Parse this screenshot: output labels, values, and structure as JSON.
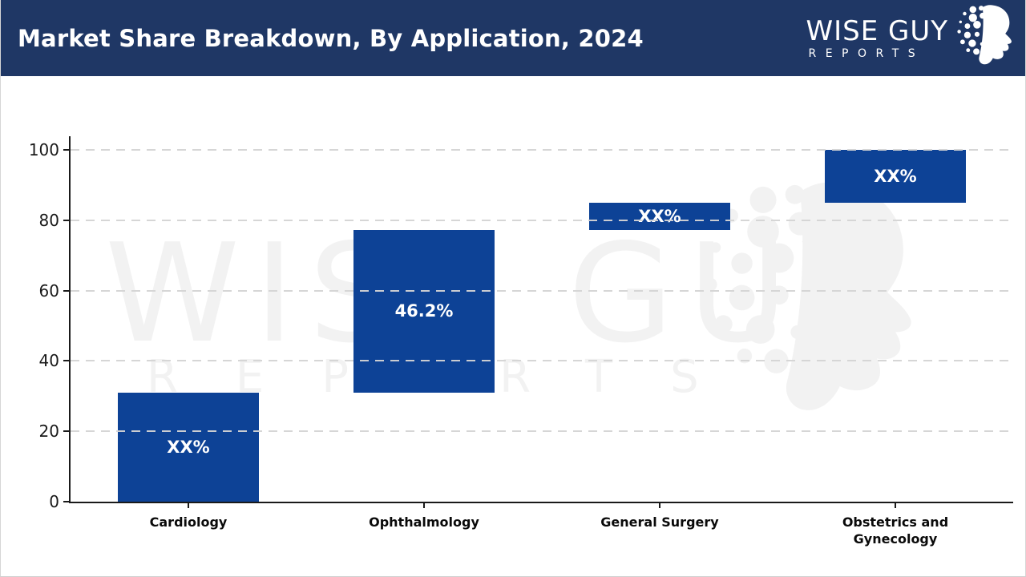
{
  "header": {
    "title": "Market Share Breakdown, By Application, 2024",
    "logo": {
      "line1": "WISE GUY",
      "line2": "REPORTS"
    }
  },
  "watermark": {
    "line1": "WISE GUY",
    "line2": "REPORTS"
  },
  "colors": {
    "header_bg": "#1f3765",
    "bar": "#0d4296",
    "grid": "#d4d4d4",
    "axis": "#1a1a1a",
    "watermark": "#f2f2f2",
    "bar_label": "#ffffff"
  },
  "chart_data": {
    "type": "bar",
    "subtype": "waterfall",
    "title": "Market Share Breakdown, By Application, 2024",
    "categories": [
      "Cardiology",
      "Ophthalmology",
      "General Surgery",
      "Obstetrics and Gynecology"
    ],
    "bars": [
      {
        "category": "Cardiology",
        "start": 0,
        "end": 31,
        "label": "XX%"
      },
      {
        "category": "Ophthalmology",
        "start": 31,
        "end": 77.2,
        "label": "46.2%"
      },
      {
        "category": "General Surgery",
        "start": 77.2,
        "end": 85,
        "label": "XX%"
      },
      {
        "category": "Obstetrics and Gynecology",
        "start": 85,
        "end": 100,
        "label": "XX%"
      }
    ],
    "xlabel": "",
    "ylabel": "",
    "ylim": [
      0,
      100
    ],
    "yticks": [
      0,
      20,
      40,
      60,
      80,
      100
    ],
    "grid": "horizontal-dashed",
    "legend": "none"
  }
}
